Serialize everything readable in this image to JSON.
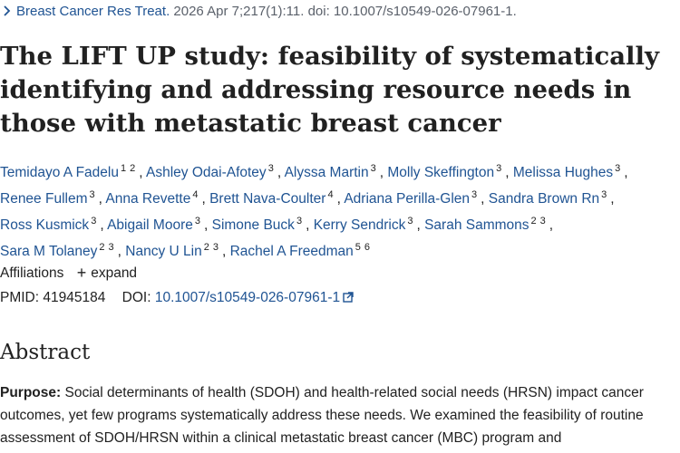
{
  "citation": {
    "journal": "Breast Cancer Res Treat.",
    "details": "2026 Apr 7;217(1):11. doi: 10.1007/s10549-026-07961-1."
  },
  "title": "The LIFT UP study: feasibility of systematically identifying and addressing resource needs in those with metastatic breast cancer",
  "authors": [
    {
      "name": "Temidayo A Fadelu",
      "affs": [
        "1",
        "2"
      ]
    },
    {
      "name": "Ashley Odai-Afotey",
      "affs": [
        "3"
      ]
    },
    {
      "name": "Alyssa Martin",
      "affs": [
        "3"
      ]
    },
    {
      "name": "Molly Skeffington",
      "affs": [
        "3"
      ]
    },
    {
      "name": "Melissa Hughes",
      "affs": [
        "3"
      ]
    },
    {
      "name": "Renee Fullem",
      "affs": [
        "3"
      ]
    },
    {
      "name": "Anna Revette",
      "affs": [
        "4"
      ]
    },
    {
      "name": "Brett Nava-Coulter",
      "affs": [
        "4"
      ]
    },
    {
      "name": "Adriana Perilla-Glen",
      "affs": [
        "3"
      ]
    },
    {
      "name": "Sandra Brown Rn",
      "affs": [
        "3"
      ]
    },
    {
      "name": "Ross Kusmick",
      "affs": [
        "3"
      ]
    },
    {
      "name": "Abigail Moore",
      "affs": [
        "3"
      ]
    },
    {
      "name": "Simone Buck",
      "affs": [
        "3"
      ]
    },
    {
      "name": "Kerry Sendrick",
      "affs": [
        "3"
      ]
    },
    {
      "name": "Sarah Sammons",
      "affs": [
        "2",
        "3"
      ]
    },
    {
      "name": "Sara M Tolaney",
      "affs": [
        "2",
        "3"
      ]
    },
    {
      "name": "Nancy U Lin",
      "affs": [
        "2",
        "3"
      ]
    },
    {
      "name": "Rachel A Freedman",
      "affs": [
        "5",
        "6"
      ]
    }
  ],
  "affiliations": {
    "label": "Affiliations",
    "expand_label": "expand"
  },
  "ids": {
    "pmid_label": "PMID:",
    "pmid": "41945184",
    "doi_label": "DOI:",
    "doi": "10.1007/s10549-026-07961-1"
  },
  "abstract": {
    "heading": "Abstract",
    "purpose_label": "Purpose:",
    "purpose_text": "Social determinants of health (SDOH) and health-related social needs (HRSN) impact cancer outcomes, yet few programs systematically address these needs. We examined the feasibility of routine assessment of SDOH/HRSN within a clinical metastatic breast cancer (MBC) program and"
  },
  "icons": {
    "chevron": "chevron-right-icon",
    "plus": "plus-icon",
    "external": "external-link-icon"
  }
}
